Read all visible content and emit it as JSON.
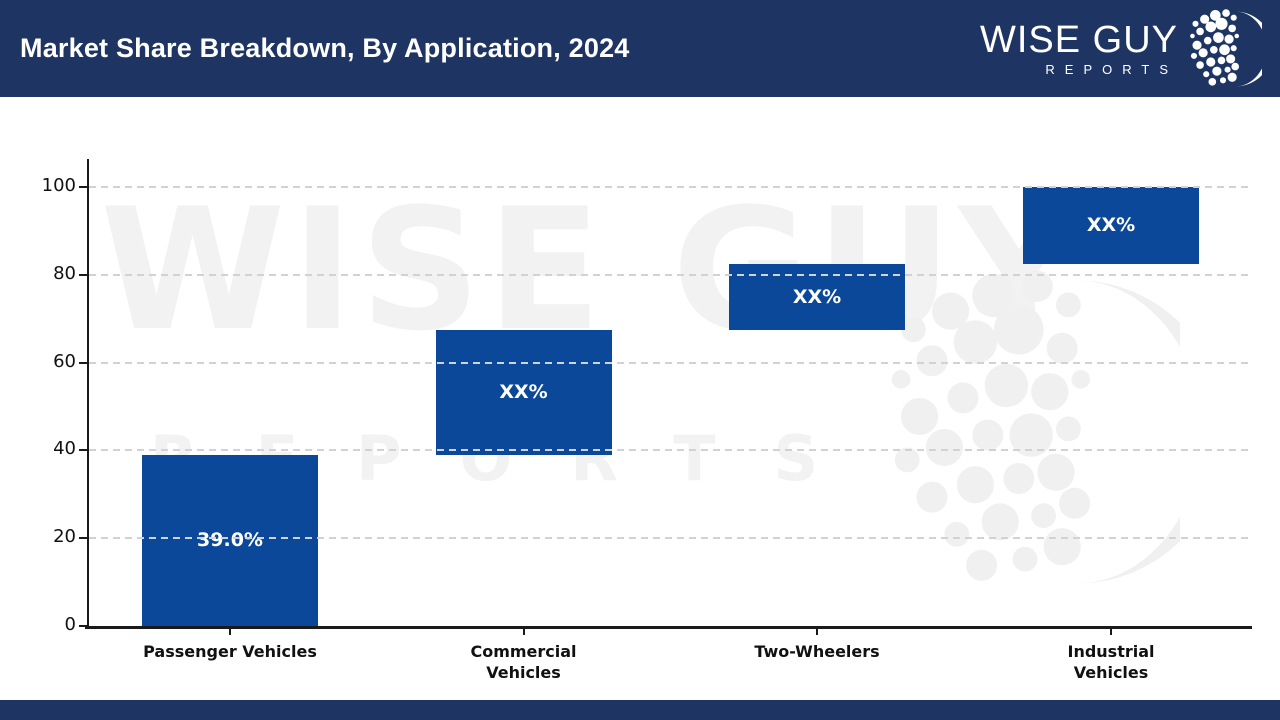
{
  "header": {
    "title": "Market Share Breakdown, By Application, 2024",
    "logo": {
      "brand_line1": "WISE GUY",
      "brand_line2": "REPORTS"
    }
  },
  "watermark": {
    "line1": "WISE GUY",
    "line2": "REPORTS"
  },
  "chart_data": {
    "type": "bar",
    "variant": "waterfall",
    "title": "Market Share Breakdown, By Application, 2024",
    "categories": [
      "Passenger Vehicles",
      "Commercial Vehicles",
      "Two-Wheelers",
      "Industrial Vehicles"
    ],
    "category_label_lines": [
      [
        "Passenger Vehicles"
      ],
      [
        "Commercial",
        "Vehicles"
      ],
      [
        "Two-Wheelers"
      ],
      [
        "Industrial",
        "Vehicles"
      ]
    ],
    "bars": [
      {
        "category": "Passenger Vehicles",
        "start": 0,
        "end": 39,
        "value_label": "39.0%"
      },
      {
        "category": "Commercial Vehicles",
        "start": 39,
        "end": 67.5,
        "value_label": "XX%"
      },
      {
        "category": "Two-Wheelers",
        "start": 67.5,
        "end": 82.5,
        "value_label": "XX%"
      },
      {
        "category": "Industrial Vehicles",
        "start": 82.5,
        "end": 100,
        "value_label": "XX%"
      }
    ],
    "xlabel": "",
    "ylabel": "",
    "yticks": [
      0,
      20,
      40,
      60,
      80,
      100
    ],
    "ylim": [
      0,
      106
    ],
    "grid": "horizontal-dashed",
    "legend": "none",
    "bar_color": "#0b4899",
    "bar_label_color": "#ffffff"
  },
  "colors": {
    "header_bg": "#1e3462",
    "footer_bg": "#1e3462",
    "bar": "#0b4899",
    "grid": "#d2d2d2",
    "axis": "#1a1a1a",
    "watermark": "#f2f2f2"
  }
}
